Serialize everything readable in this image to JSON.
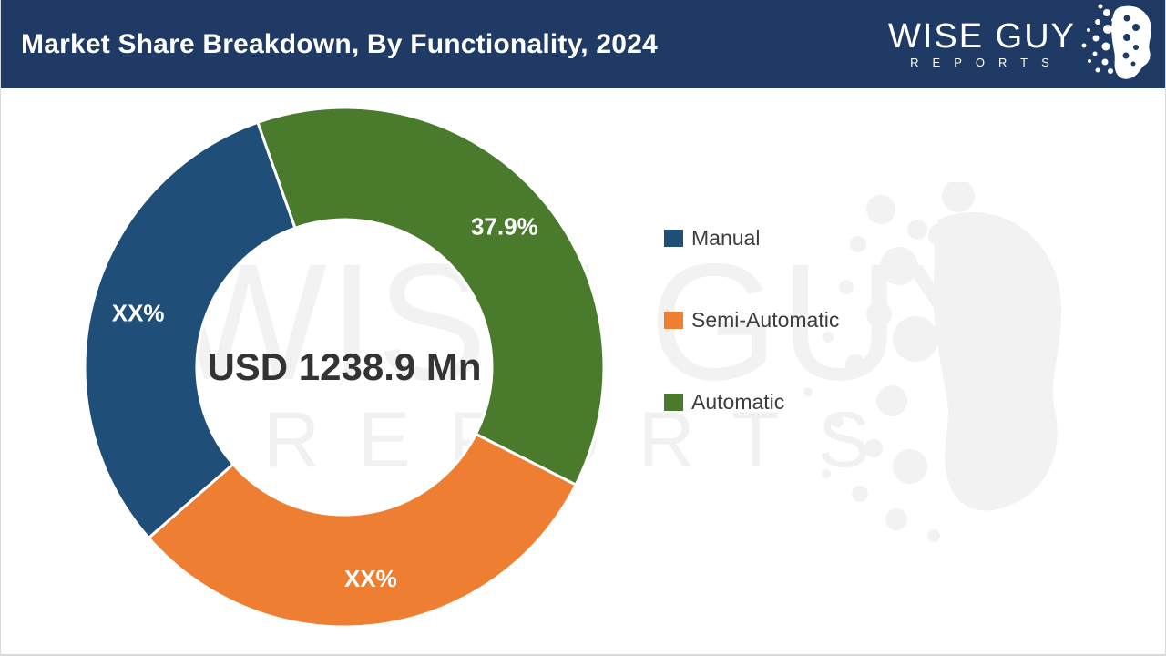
{
  "header": {
    "title": "Market Share Breakdown, By Functionality, 2024",
    "logo": {
      "line1": "WISE GUY",
      "line2": "REPORTS"
    }
  },
  "watermark": {
    "line1": "WISE GUY",
    "line2": "REPORTS"
  },
  "legend": [
    {
      "label": "Manual",
      "color": "#1f4e79"
    },
    {
      "label": "Semi-Automatic",
      "color": "#ee7e31"
    },
    {
      "label": "Automatic",
      "color": "#4a7a2b"
    }
  ],
  "chart_data": {
    "type": "pie",
    "subtype": "donut",
    "title": "Market Share Breakdown, By Functionality, 2024",
    "center_label": "USD 1238.9 Mn",
    "start_angle_deg": -19.5,
    "legend_position": "right",
    "segments": [
      {
        "name": "Automatic",
        "display_label": "37.9%",
        "value_pct": 37.9,
        "color": "#4a7a2b"
      },
      {
        "name": "Semi-Automatic",
        "display_label": "XX%",
        "value_pct": 31.1,
        "color": "#ee7e31"
      },
      {
        "name": "Manual",
        "display_label": "XX%",
        "value_pct": 31.0,
        "color": "#1f4e79"
      }
    ]
  }
}
